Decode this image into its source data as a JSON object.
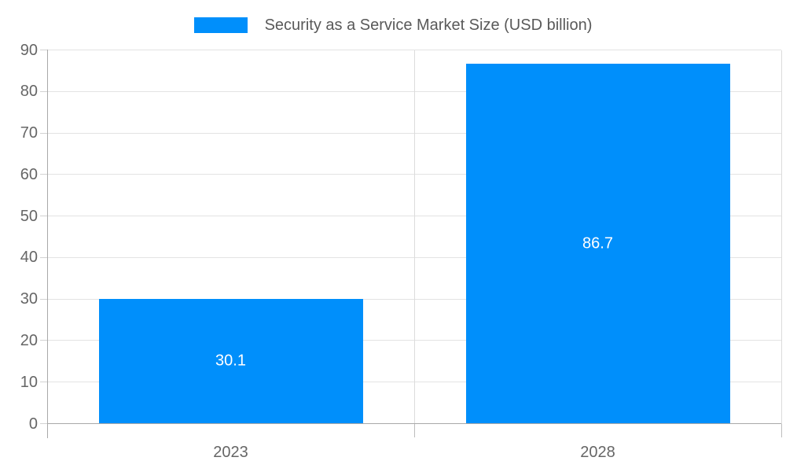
{
  "chart_data": {
    "type": "bar",
    "title": "Security as a Service Market Size (USD billion)",
    "categories": [
      "2023",
      "2028"
    ],
    "series": [
      {
        "name": "Security as a Service Market Size (USD billion)",
        "values": [
          30.1,
          86.7
        ]
      }
    ],
    "value_labels": [
      "30.1",
      "86.7"
    ],
    "xlabel": "",
    "ylabel": "",
    "ylim": [
      0,
      90
    ],
    "ytick_step": 10,
    "ytick_labels": [
      "0",
      "10",
      "20",
      "30",
      "40",
      "50",
      "60",
      "70",
      "80",
      "90"
    ],
    "grid": true,
    "legend_position": "top",
    "colors": {
      "bar": "#008FFB",
      "bar_value_label": "#ffffff",
      "legend_text": "#595959",
      "axis_label": "#666666",
      "gridline": "#e3e3e3",
      "axis_line": "#a9a9a9"
    }
  },
  "legend": {
    "label": "Security as a Service Market Size (USD billion)",
    "swatch_color": "#008FFB"
  }
}
